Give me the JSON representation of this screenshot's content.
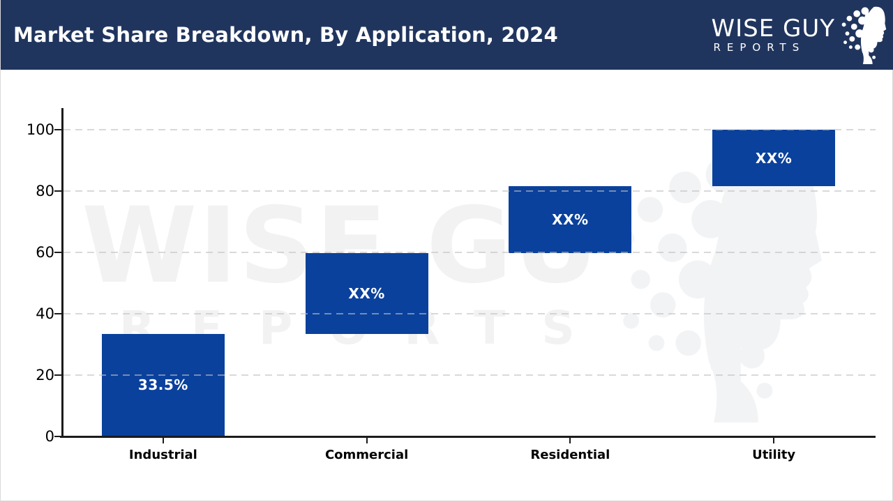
{
  "header": {
    "title": "Market Share Breakdown, By Application, 2024",
    "logo": {
      "line1": "WISE GUY",
      "line2": "REPORTS"
    }
  },
  "watermark": {
    "line1": "WISE GU",
    "line2": "REPORTS"
  },
  "colors": {
    "header_bg": "#20355E",
    "bar_blue": "#0A419C",
    "axis": "#1b1b1b",
    "gridline": "#dcdcdc",
    "watermark_gray": "#f2f2f2",
    "bar_label_text": "#ffffff"
  },
  "chart_data": {
    "type": "bar",
    "subtype": "waterfall",
    "title": "Market Share Breakdown, By Application, 2024",
    "categories": [
      "Industrial",
      "Commercial",
      "Residential",
      "Utility"
    ],
    "segments": [
      {
        "category": "Industrial",
        "start": 0,
        "end": 33.5,
        "label": "33.5%"
      },
      {
        "category": "Commercial",
        "start": 33.5,
        "end": 59.7,
        "label": "XX%"
      },
      {
        "category": "Residential",
        "start": 59.7,
        "end": 81.5,
        "label": "XX%"
      },
      {
        "category": "Utility",
        "start": 81.5,
        "end": 100,
        "label": "XX%"
      }
    ],
    "xlabel": "",
    "ylabel": "",
    "yticks": [
      0,
      20,
      40,
      60,
      80,
      100
    ],
    "ylim": [
      0,
      107
    ],
    "grid": "dashed-horizontal-over-bars",
    "legend": "none",
    "bar_color": "#0A419C"
  }
}
